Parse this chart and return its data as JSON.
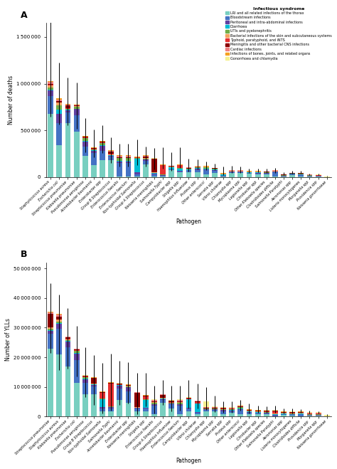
{
  "legend_labels": [
    "LRI and all related infections of the thorax",
    "Bloodstream infections",
    "Peritoneal and intra-abdominal infections",
    "Diarrhoea",
    "UTIs and pyelonephritis",
    "Bacterial infections of the skin and subcutaneous systems",
    "Typhoid, paratyphoid, and iNTS",
    "Meningitis and other bacterial CNS infections",
    "Cardiac infections",
    "Infections of bones, joints, and related organs",
    "Gonorrhoea and chlamydia"
  ],
  "colors": [
    "#78cfc0",
    "#4472c4",
    "#6040a0",
    "#00bcd4",
    "#70ad47",
    "#f4a460",
    "#e63030",
    "#8b0000",
    "#f08080",
    "#f4a020",
    "#f5f090"
  ],
  "pathogens_A": [
    "Staphylococcus aureus",
    "Escherichia coli",
    "Streptococcus pneumoniae",
    "Klebsiella pneumoniae",
    "Pseudomonas aeruginosa",
    "Acinetobacter baumannii",
    "Enterobacter spp",
    "Group B Streptococcus",
    "Enterococcus faecalis",
    "Enterococcus faecium",
    "Non-typhoidal Salmonella",
    "Group A Streptococcus",
    "Neisseria meningitidis",
    "Salmonella Typhi",
    "Campylobacter spp",
    "Shigella spp",
    "Haemophilus influenzae",
    "Proteus spp",
    "Other enterococci",
    "Serratia spp",
    "Vibrio cholerae",
    "Chlamydia spp",
    "Mycoplasma spp",
    "Legionella spp",
    "Citrobacter spp",
    "Other Klebsiella species",
    "Clostridioides difficile",
    "Salmonella Paratyphi",
    "Aeromonas spp",
    "Listeria monocytogenes",
    "Morganella spp",
    "Providencia spp",
    "Neisseria gonorrhoeae"
  ],
  "stacks_A": [
    [
      680000,
      190000,
      55000,
      8000,
      22000,
      28000,
      3000,
      12000,
      18000,
      9000,
      1000
    ],
    [
      340000,
      240000,
      95000,
      45000,
      48000,
      28000,
      6000,
      11000,
      19000,
      9000,
      1000
    ],
    [
      580000,
      115000,
      22000,
      6000,
      6000,
      5000,
      3000,
      28000,
      11000,
      5000,
      1000
    ],
    [
      490000,
      175000,
      62000,
      6000,
      21000,
      5000,
      3000,
      6000,
      6000,
      5000,
      1000
    ],
    [
      230000,
      95000,
      58000,
      6000,
      28000,
      5000,
      3000,
      6000,
      6000,
      5000,
      1000
    ],
    [
      130000,
      125000,
      28000,
      6000,
      6000,
      5000,
      3000,
      6000,
      6000,
      5000,
      1000
    ],
    [
      185000,
      95000,
      58000,
      6000,
      19000,
      5000,
      3000,
      6000,
      6000,
      5000,
      1000
    ],
    [
      185000,
      38000,
      5000,
      5000,
      6000,
      5000,
      3000,
      28000,
      6000,
      5000,
      1000
    ],
    [
      5000,
      145000,
      19000,
      5000,
      28000,
      2000,
      2000,
      6000,
      19000,
      5000,
      1000
    ],
    [
      5000,
      145000,
      19000,
      5000,
      28000,
      2000,
      2000,
      6000,
      19000,
      5000,
      1000
    ],
    [
      5000,
      28000,
      19000,
      145000,
      5000,
      2000,
      5000,
      2000,
      2000,
      5000,
      1000
    ],
    [
      140000,
      38000,
      10000,
      5000,
      5000,
      5000,
      2000,
      19000,
      5000,
      5000,
      1000
    ],
    [
      5000,
      28000,
      5000,
      5000,
      5000,
      2000,
      2000,
      145000,
      2000,
      2000,
      1000
    ],
    [
      5000,
      10000,
      5000,
      5000,
      5000,
      2000,
      95000,
      2000,
      2000,
      2000,
      1000
    ],
    [
      75000,
      5000,
      5000,
      19000,
      5000,
      5000,
      2000,
      2000,
      2000,
      2000,
      1000
    ],
    [
      55000,
      5000,
      5000,
      28000,
      5000,
      2000,
      28000,
      2000,
      2000,
      2000,
      1000
    ],
    [
      55000,
      19000,
      5000,
      5000,
      5000,
      2000,
      2000,
      9000,
      2000,
      2000,
      1000
    ],
    [
      55000,
      19000,
      19000,
      5000,
      9000,
      2000,
      2000,
      2000,
      2000,
      2000,
      1000
    ],
    [
      28000,
      48000,
      9000,
      5000,
      19000,
      2000,
      2000,
      2000,
      2000,
      2000,
      1000
    ],
    [
      47000,
      19000,
      9000,
      5000,
      9000,
      2000,
      2000,
      2000,
      2000,
      2000,
      1000
    ],
    [
      5000,
      5000,
      2000,
      19000,
      2000,
      2000,
      2000,
      2000,
      2000,
      2000,
      1000
    ],
    [
      47000,
      5000,
      5000,
      5000,
      2000,
      2000,
      2000,
      2000,
      2000,
      2000,
      1000
    ],
    [
      47000,
      5000,
      5000,
      5000,
      2000,
      2000,
      2000,
      2000,
      2000,
      2000,
      1000
    ],
    [
      38000,
      5000,
      5000,
      5000,
      2000,
      2000,
      2000,
      2000,
      2000,
      2000,
      1000
    ],
    [
      28000,
      9000,
      9000,
      5000,
      5000,
      2000,
      2000,
      2000,
      2000,
      2000,
      1000
    ],
    [
      28000,
      9000,
      5000,
      5000,
      5000,
      2000,
      2000,
      2000,
      2000,
      2000,
      1000
    ],
    [
      5000,
      47000,
      5000,
      5000,
      2000,
      2000,
      2000,
      2000,
      2000,
      2000,
      1000
    ],
    [
      5000,
      5000,
      2000,
      5000,
      2000,
      2000,
      5000,
      2000,
      2000,
      2000,
      1000
    ],
    [
      19000,
      5000,
      5000,
      5000,
      2000,
      2000,
      2000,
      2000,
      2000,
      2000,
      1000
    ],
    [
      9000,
      19000,
      2000,
      2000,
      2000,
      2000,
      2000,
      5000,
      2000,
      2000,
      1000
    ],
    [
      5000,
      5000,
      5000,
      2000,
      2000,
      2000,
      2000,
      2000,
      2000,
      2000,
      1000
    ],
    [
      5000,
      5000,
      2000,
      2000,
      2000,
      2000,
      2000,
      2000,
      2000,
      2000,
      1000
    ],
    [
      1000,
      0,
      0,
      0,
      0,
      0,
      0,
      0,
      0,
      0,
      9000
    ]
  ],
  "errors_A_lo": [
    380000,
    280000,
    230000,
    260000,
    180000,
    110000,
    130000,
    135000,
    120000,
    120000,
    90000,
    120000,
    120000,
    45000,
    55000,
    35000,
    45000,
    35000,
    45000,
    27000,
    25000,
    27000,
    27000,
    18000,
    17000,
    17000,
    27000,
    8000,
    8000,
    8000,
    4000,
    4000,
    4000
  ],
  "errors_A_hi": [
    650000,
    380000,
    280000,
    230000,
    185000,
    185000,
    165000,
    140000,
    120000,
    120000,
    185000,
    90000,
    110000,
    185000,
    140000,
    185000,
    90000,
    72000,
    45000,
    45000,
    72000,
    45000,
    36000,
    27000,
    27000,
    27000,
    27000,
    18000,
    18000,
    18000,
    9000,
    9000,
    4000
  ],
  "pathogens_B": [
    "Streptococcus pneumoniae",
    "Staphylococcus aureus",
    "Klebsiella pneumoniae",
    "Escherichia coli",
    "Pseudomonas aeruginosa",
    "Group B Streptococcus",
    "Non-typhoidal Salmonella",
    "Salmonella Typhi",
    "Acinetobacter baumannii",
    "Enterobacter spp",
    "Neisseria meningitidis",
    "Shigella spp",
    "Enterococcus faecalis",
    "Group A Streptococcus",
    "Haemophilus influenzae",
    "Enterococcus faecium",
    "Campylobacter spp",
    "Vibrio cholerae",
    "Chlamydia spp",
    "Mycoplasma spp",
    "Serratia spp",
    "Proteus spp",
    "Other enterococci",
    "Legionella spp",
    "Citrobacter spp",
    "Other Klebsiella species",
    "Salmonella Paratyphi",
    "Aeromonas spp",
    "Listeria monocytogenes",
    "Clostridioides difficile",
    "Providencia spp",
    "Morganella spp",
    "Neisseria gonorrhoeae"
  ],
  "stacks_B": [
    [
      23000000,
      5000000,
      1000000,
      200000,
      300000,
      500000,
      100000,
      4500000,
      500000,
      200000,
      100000
    ],
    [
      21000000,
      8500000,
      1800000,
      200000,
      500000,
      700000,
      100000,
      1000000,
      500000,
      300000,
      100000
    ],
    [
      17000000,
      6500000,
      1800000,
      200000,
      400000,
      200000,
      100000,
      500000,
      200000,
      100000,
      100000
    ],
    [
      11500000,
      7500000,
      2300000,
      200000,
      600000,
      200000,
      100000,
      200000,
      200000,
      100000,
      100000
    ],
    [
      7500000,
      3800000,
      1400000,
      100000,
      500000,
      100000,
      100000,
      200000,
      100000,
      100000,
      100000
    ],
    [
      7500000,
      2800000,
      450000,
      100000,
      100000,
      100000,
      100000,
      1900000,
      100000,
      100000,
      100000
    ],
    [
      1800000,
      900000,
      450000,
      2800000,
      100000,
      100000,
      1900000,
      200000,
      100000,
      100000,
      100000
    ],
    [
      1800000,
      900000,
      450000,
      200000,
      100000,
      100000,
      7600000,
      200000,
      100000,
      100000,
      100000
    ],
    [
      5700000,
      3800000,
      950000,
      100000,
      100000,
      100000,
      100000,
      200000,
      100000,
      100000,
      100000
    ],
    [
      4750000,
      3800000,
      1400000,
      100000,
      200000,
      100000,
      100000,
      200000,
      100000,
      100000,
      100000
    ],
    [
      1800000,
      900000,
      200000,
      100000,
      100000,
      100000,
      100000,
      4750000,
      100000,
      100000,
      100000
    ],
    [
      1800000,
      900000,
      200000,
      2800000,
      100000,
      100000,
      950000,
      200000,
      100000,
      100000,
      100000
    ],
    [
      950000,
      2800000,
      450000,
      100000,
      480000,
      100000,
      100000,
      200000,
      380000,
      100000,
      100000
    ],
    [
      4750000,
      950000,
      200000,
      200000,
      100000,
      100000,
      100000,
      950000,
      100000,
      100000,
      100000
    ],
    [
      2800000,
      1400000,
      200000,
      100000,
      100000,
      100000,
      100000,
      480000,
      100000,
      100000,
      100000
    ],
    [
      950000,
      2800000,
      450000,
      100000,
      480000,
      100000,
      100000,
      200000,
      380000,
      100000,
      100000
    ],
    [
      1800000,
      950000,
      200000,
      2800000,
      100000,
      100000,
      100000,
      200000,
      100000,
      100000,
      100000
    ],
    [
      950000,
      470000,
      100000,
      2800000,
      100000,
      100000,
      470000,
      200000,
      100000,
      100000,
      100000
    ],
    [
      1800000,
      470000,
      200000,
      100000,
      100000,
      100000,
      100000,
      200000,
      100000,
      100000,
      1900000
    ],
    [
      1800000,
      470000,
      200000,
      100000,
      100000,
      100000,
      100000,
      200000,
      100000,
      100000,
      100000
    ],
    [
      950000,
      950000,
      280000,
      100000,
      200000,
      100000,
      100000,
      200000,
      100000,
      100000,
      100000
    ],
    [
      1400000,
      470000,
      280000,
      100000,
      200000,
      100000,
      100000,
      200000,
      100000,
      100000,
      100000
    ],
    [
      950000,
      1400000,
      200000,
      100000,
      480000,
      100000,
      100000,
      200000,
      100000,
      100000,
      100000
    ],
    [
      950000,
      470000,
      200000,
      100000,
      100000,
      100000,
      100000,
      200000,
      100000,
      100000,
      100000
    ],
    [
      750000,
      470000,
      200000,
      100000,
      100000,
      100000,
      100000,
      200000,
      100000,
      100000,
      100000
    ],
    [
      750000,
      380000,
      200000,
      100000,
      100000,
      100000,
      100000,
      200000,
      100000,
      100000,
      100000
    ],
    [
      180000,
      280000,
      100000,
      200000,
      100000,
      100000,
      760000,
      200000,
      100000,
      100000,
      100000
    ],
    [
      560000,
      280000,
      100000,
      100000,
      100000,
      100000,
      100000,
      200000,
      100000,
      100000,
      100000
    ],
    [
      280000,
      470000,
      100000,
      100000,
      100000,
      100000,
      100000,
      200000,
      100000,
      100000,
      100000
    ],
    [
      180000,
      660000,
      100000,
      100000,
      100000,
      100000,
      100000,
      200000,
      100000,
      100000,
      100000
    ],
    [
      280000,
      190000,
      100000,
      100000,
      100000,
      100000,
      100000,
      200000,
      100000,
      100000,
      100000
    ],
    [
      280000,
      190000,
      100000,
      100000,
      100000,
      100000,
      100000,
      200000,
      100000,
      100000,
      100000
    ],
    [
      95000,
      0,
      0,
      0,
      0,
      0,
      0,
      0,
      0,
      0,
      475000
    ]
  ],
  "errors_B_lo": [
    14000000,
    19000000,
    11000000,
    9500000,
    7500000,
    9500000,
    7500000,
    9500000,
    7500000,
    6500000,
    7500000,
    3800000,
    4750000,
    3800000,
    3800000,
    3800000,
    3800000,
    2800000,
    2800000,
    1900000,
    1900000,
    1900000,
    1900000,
    1400000,
    950000,
    950000,
    950000,
    660000,
    660000,
    470000,
    380000,
    280000,
    190000
  ],
  "errors_B_hi": [
    9500000,
    6500000,
    9500000,
    7500000,
    9500000,
    7500000,
    9500000,
    9500000,
    7500000,
    7500000,
    6500000,
    7500000,
    4750000,
    4750000,
    4750000,
    4750000,
    5700000,
    5700000,
    4750000,
    3800000,
    1900000,
    1900000,
    1900000,
    1900000,
    1400000,
    1140000,
    1400000,
    950000,
    950000,
    660000,
    570000,
    380000,
    280000
  ]
}
